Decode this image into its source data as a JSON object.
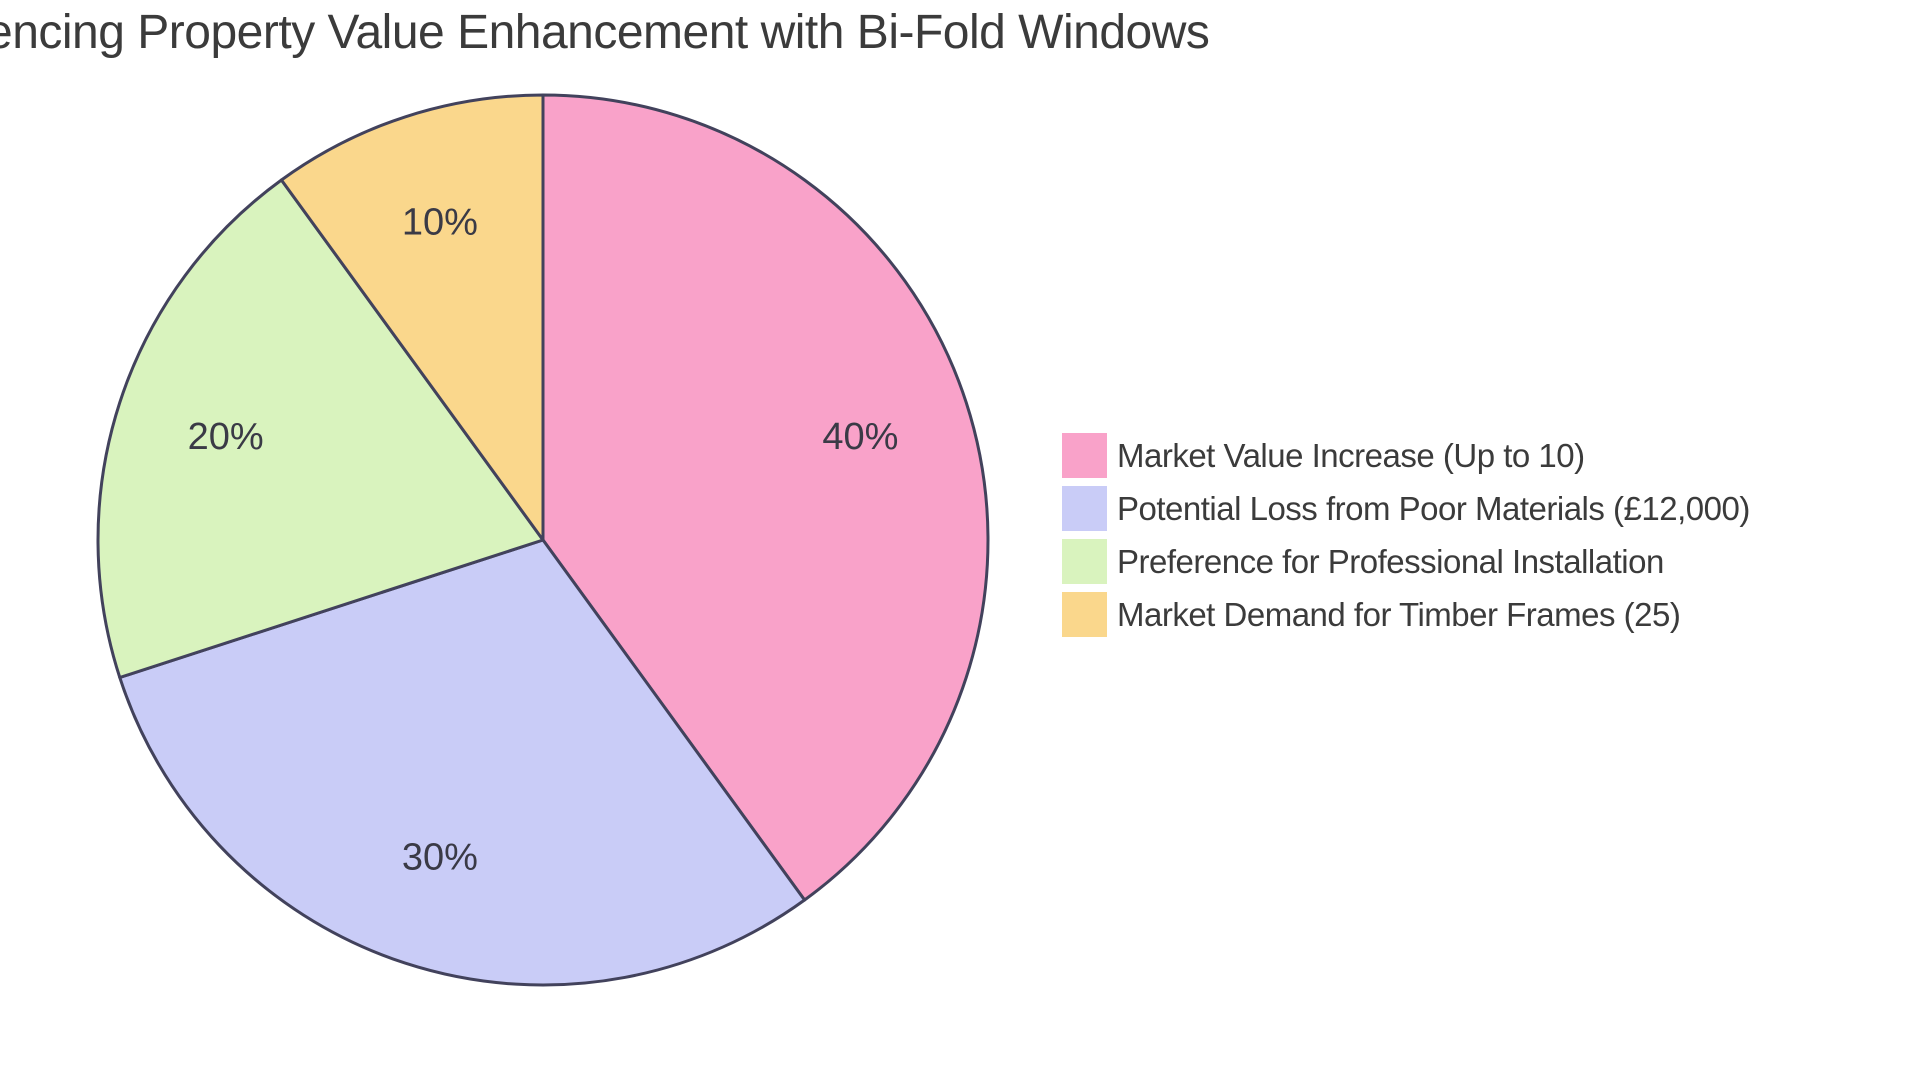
{
  "title": "encing Property Value Enhancement with Bi-Fold Windows",
  "chart_data": {
    "type": "pie",
    "title": "encing Property Value Enhancement with Bi-Fold Windows",
    "title_note": "title is clipped at the left edge of the image",
    "slices": [
      {
        "label": "Market Value Increase (Up to 10)",
        "value": 40,
        "percent_label": "40%",
        "color": "#F9A2C9"
      },
      {
        "label": "Potential Loss from Poor Materials (£12,000)",
        "value": 30,
        "percent_label": "30%",
        "color": "#C9CCF7"
      },
      {
        "label": "Preference for Professional Installation",
        "value": 20,
        "percent_label": "20%",
        "color": "#D9F3BE"
      },
      {
        "label": "Market Demand for Timber Frames (25)",
        "value": 10,
        "percent_label": "10%",
        "color": "#FAD78C"
      }
    ],
    "start_angle": "12-o-clock",
    "direction": "clockwise",
    "slice_outline_color": "#42425C",
    "percent_label_color": "#3A3A46",
    "legend_position": "right",
    "legend_text_color": "#3B3B3B",
    "background_color": "#FFFFFF"
  }
}
